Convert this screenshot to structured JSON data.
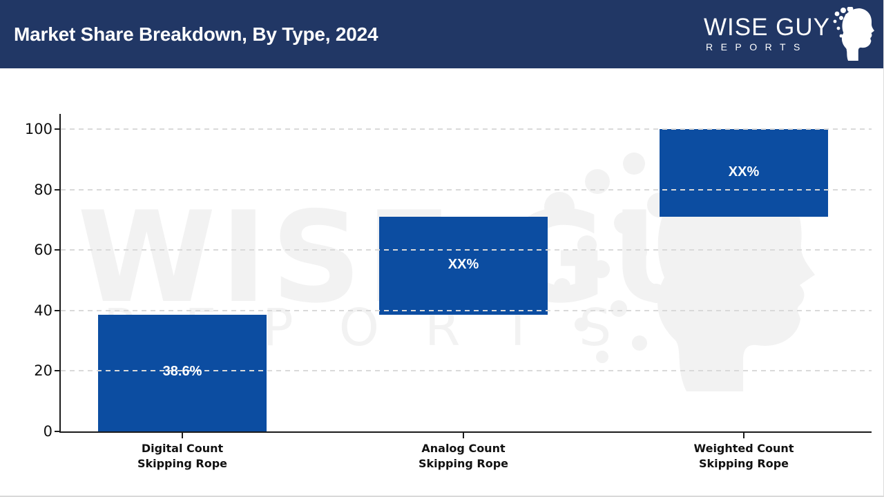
{
  "header": {
    "title": "Market Share Breakdown, By Type, 2024",
    "logo": {
      "line1": "WISE GUY",
      "line2": "REPORTS"
    }
  },
  "watermark": {
    "line1": "WISE GU",
    "line2": "REPORTS"
  },
  "colors": {
    "header_bg": "#213765",
    "bar": "#0c4da1",
    "bar_label": "#ffffff",
    "gridline": "#d9d9d9",
    "axis": "#1a1a1a",
    "watermark": "#f2f2f2"
  },
  "chart_data": {
    "type": "bar",
    "variant": "floating-waterfall",
    "title": "Market Share Breakdown, By Type, 2024",
    "categories": [
      "Digital Count\nSkipping Rope",
      "Analog Count\nSkipping Rope",
      "Weighted Count\nSkipping Rope"
    ],
    "bars": [
      {
        "category": "Digital Count Skipping Rope",
        "start": 0,
        "end": 38.6,
        "label": "38.6%"
      },
      {
        "category": "Analog Count Skipping Rope",
        "start": 38.6,
        "end": 70.9,
        "label": "XX%"
      },
      {
        "category": "Weighted Count Skipping Rope",
        "start": 70.9,
        "end": 100,
        "label": "XX%"
      }
    ],
    "ylim": [
      0,
      100
    ],
    "yticks": [
      0,
      20,
      40,
      60,
      80,
      100
    ],
    "xlabel": "",
    "ylabel": "",
    "grid": "horizontal-dashed",
    "legend": false
  }
}
